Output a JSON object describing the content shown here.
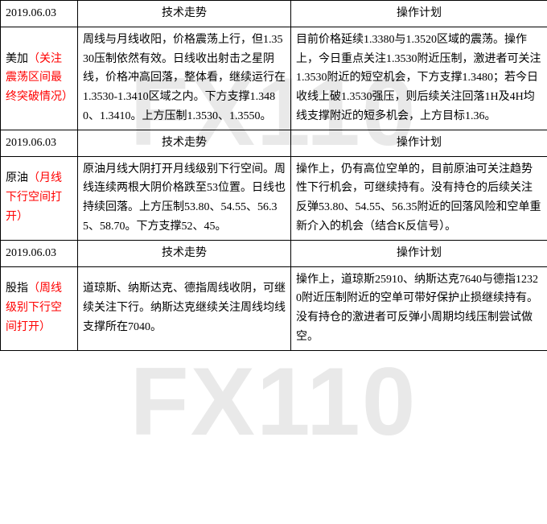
{
  "watermark": "FX110",
  "headers": {
    "tech": "技术走势",
    "plan": "操作计划"
  },
  "sections": [
    {
      "date": "2019.06.03",
      "label_main": "美加",
      "label_note": "（关注震荡区间最终突破情况）",
      "tech": "周线与月线收阳，价格震荡上行，但1.3530压制依然有效。日线收出射击之星阴线，价格冲高回落，整体看，继续运行在1.3530-1.3410区域之内。下方支撑1.3480、1.3410。上方压制1.3530、1.3550。",
      "plan": "目前价格延续1.3380与1.3520区域的震荡。操作上，今日重点关注1.3530附近压制，激进者可关注1.3530附近的短空机会，下方支撑1.3480；若今日收线上破1.3530强压，则后续关注回落1H及4H均线支撑附近的短多机会，上方目标1.36。"
    },
    {
      "date": "2019.06.03",
      "label_main": "原油",
      "label_note": "（月线下行空间打开）",
      "tech": "原油月线大阴打开月线级别下行空间。周线连续两根大阴价格跌至53位置。日线也持续回落。上方压制53.80、54.55、56.35、58.70。下方支撑52、45。",
      "plan": "操作上，仍有高位空单的，目前原油可关注趋势性下行机会，可继续持有。没有持仓的后续关注反弹53.80、54.55、56.35附近的回落风险和空单重新介入的机会（结合K反信号）。"
    },
    {
      "date": "2019.06.03",
      "label_main": "股指",
      "label_note": "（周线级别下行空间打开）",
      "tech": "道琼斯、纳斯达克、德指周线收阴，可继续关注下行。纳斯达克继续关注周线均线支撑所在7040。",
      "plan": "操作上，道琼斯25910、纳斯达克7640与德指12320附近压制附近的空单可带好保护止损继续持有。没有持仓的激进者可反弹小周期均线压制尝试做空。"
    }
  ]
}
